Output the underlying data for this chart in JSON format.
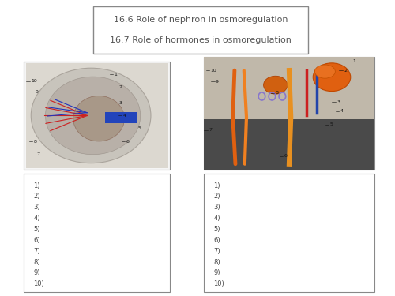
{
  "title_line1": "16.6 Role of nephron in osmoregulation",
  "title_line2": "16.7 Role of hormones in osmoregulation",
  "background_color": "#ffffff",
  "title_box_edge": "#888888",
  "title_font_size": 8.0,
  "title_font_color": "#555555",
  "label_items": [
    "1)",
    "2)",
    "3)",
    "4)",
    "5)",
    "6)",
    "7)",
    "8)",
    "9)",
    "10)"
  ],
  "box_edge_color": "#888888",
  "box_face_color": "#ffffff",
  "label_font_size": 6.0,
  "label_font_color": "#444444"
}
